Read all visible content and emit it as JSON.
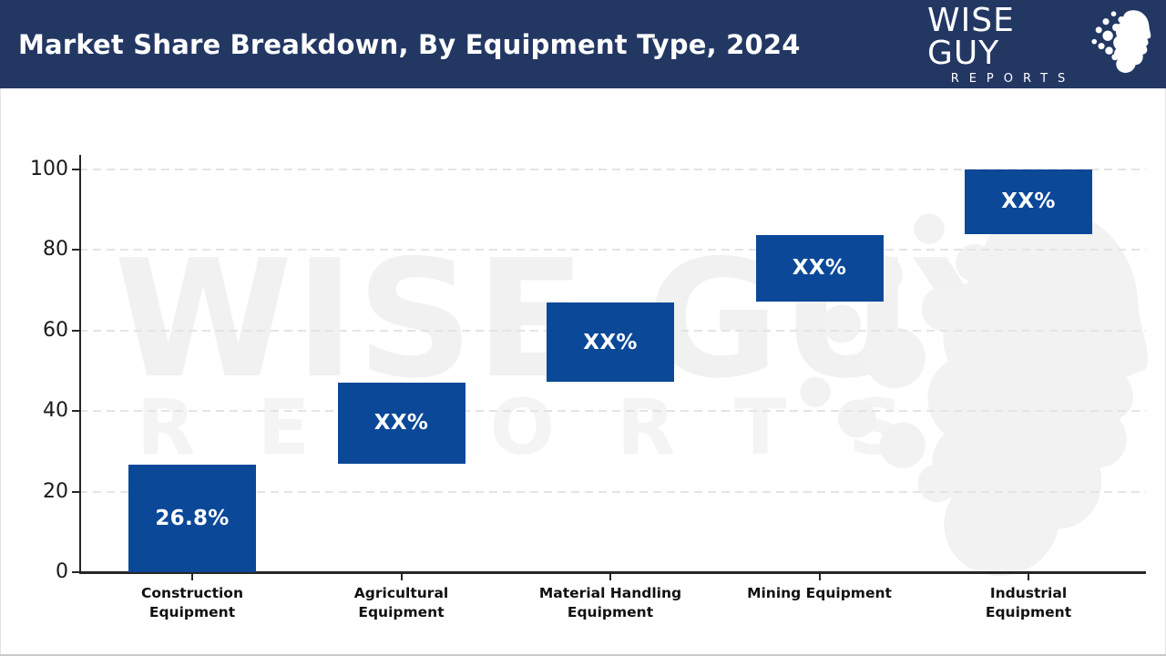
{
  "header": {
    "title": "Market Share Breakdown, By Equipment Type, 2024",
    "logo": {
      "line1": "WISE GUY",
      "line2": "REPORTS"
    }
  },
  "watermark": {
    "line1": "WISE GUY",
    "line2": "REPORTS"
  },
  "colors": {
    "header_bg": "#233763",
    "bar": "#0b4898",
    "bar_label": "#ffffff",
    "grid": "#e4e4e4",
    "axis": "#262626",
    "watermark": "#f1f1f1"
  },
  "chart_data": {
    "type": "bar",
    "variant": "waterfall",
    "title": "Market Share Breakdown, By Equipment Type, 2024",
    "xlabel": "",
    "ylabel": "",
    "ylim": [
      0,
      100
    ],
    "y_ticks": [
      0,
      20,
      40,
      60,
      80,
      100
    ],
    "grid": "horizontal-dashed",
    "legend": "none",
    "categories": [
      "Construction Equipment",
      "Agricultural Equipment",
      "Material Handling Equipment",
      "Mining Equipment",
      "Industrial Equipment"
    ],
    "category_lines": [
      [
        "Construction",
        "Equipment"
      ],
      [
        "Agricultural",
        "Equipment"
      ],
      [
        "Material Handling",
        "Equipment"
      ],
      [
        "Mining Equipment"
      ],
      [
        "Industrial",
        "Equipment"
      ]
    ],
    "bars": [
      {
        "category": "Construction Equipment",
        "start": 0,
        "end": 26.8,
        "label": "26.8%"
      },
      {
        "category": "Agricultural Equipment",
        "start": 27.0,
        "end": 47.0,
        "label": "XX%"
      },
      {
        "category": "Material Handling Equipment",
        "start": 47.2,
        "end": 67.0,
        "label": "XX%"
      },
      {
        "category": "Mining Equipment",
        "start": 67.2,
        "end": 83.7,
        "label": "XX%"
      },
      {
        "category": "Industrial Equipment",
        "start": 84.0,
        "end": 100.0,
        "label": "XX%"
      }
    ]
  }
}
